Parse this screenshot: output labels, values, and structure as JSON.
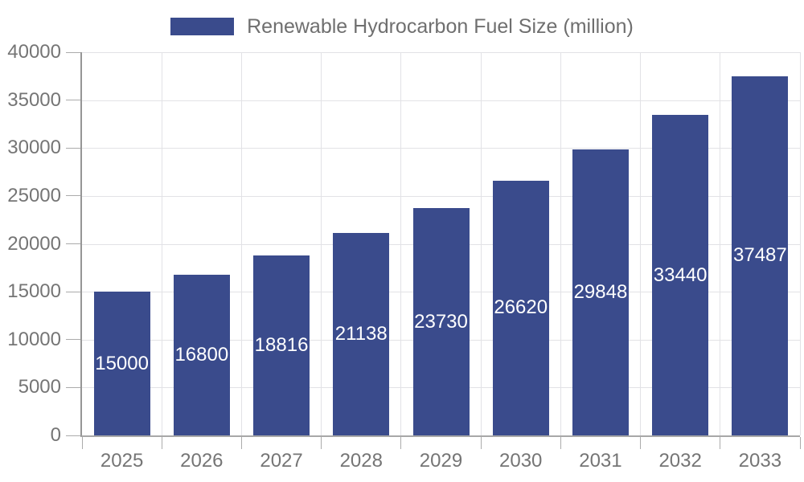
{
  "legend": {
    "label": "Renewable Hydrocarbon Fuel Size (million)"
  },
  "chart_data": {
    "type": "bar",
    "title": "Renewable Hydrocarbon Fuel Size (million)",
    "categories": [
      "2025",
      "2026",
      "2027",
      "2028",
      "2029",
      "2030",
      "2031",
      "2032",
      "2033"
    ],
    "values": [
      15000,
      16800,
      18816,
      21138,
      23730,
      26620,
      29848,
      33440,
      37487
    ],
    "xlabel": "",
    "ylabel": "",
    "ylim": [
      0,
      40000
    ],
    "yticks": [
      0,
      5000,
      10000,
      15000,
      20000,
      25000,
      30000,
      35000,
      40000
    ],
    "grid": true,
    "legend_position": "top-center",
    "value_label_position": "inside-center",
    "colors": {
      "bar": "#3A4B8C",
      "value_label": "#ffffff",
      "tick_label": "#757575",
      "legend_text": "#6f6f6f",
      "axis": "#969696",
      "grid": "#e2e2e6"
    }
  }
}
